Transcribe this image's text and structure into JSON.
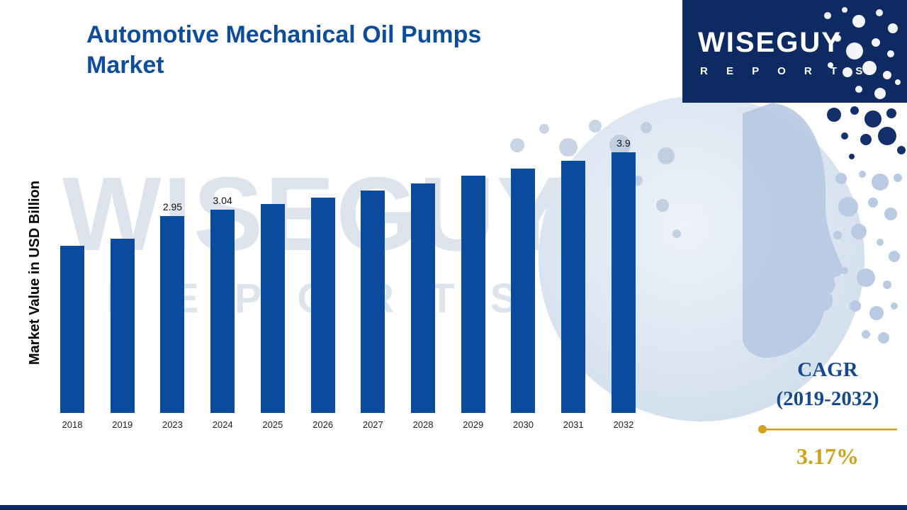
{
  "header": {
    "title": "Automotive Mechanical Oil Pumps Market"
  },
  "logo": {
    "name": "WISEGUY",
    "reports": "R E P O R T S"
  },
  "watermark": {
    "line1": "WISEGUY",
    "line2": "REPORTS"
  },
  "chart_data": {
    "type": "bar",
    "title": "Automotive Mechanical Oil Pumps Market",
    "categories": [
      "2018",
      "2019",
      "2023",
      "2024",
      "2025",
      "2026",
      "2027",
      "2028",
      "2029",
      "2030",
      "2031",
      "2032"
    ],
    "values": [
      2.5,
      2.61,
      2.95,
      3.04,
      3.13,
      3.22,
      3.33,
      3.44,
      3.55,
      3.66,
      3.78,
      3.9
    ],
    "data_labels": [
      "",
      "",
      "2.95",
      "3.04",
      "",
      "",
      "",
      "",
      "",
      "",
      "",
      "3.9"
    ],
    "xlabel": "",
    "ylabel": "Market Value in USD Billion",
    "ylim": [
      0,
      4.2
    ],
    "bar_color": "#0a4b9e",
    "grid": false,
    "legend": false
  },
  "cagr": {
    "label": "CAGR",
    "range": "(2019-2032)",
    "value": "3.17%"
  },
  "colors": {
    "bar": "#0a4b9e",
    "title_blue": "#0d4d9c",
    "navy": "#0e2a63",
    "gold": "#d2a11f",
    "watermark": "#c2cedd",
    "circle_light_blue": "#d3dfee"
  }
}
